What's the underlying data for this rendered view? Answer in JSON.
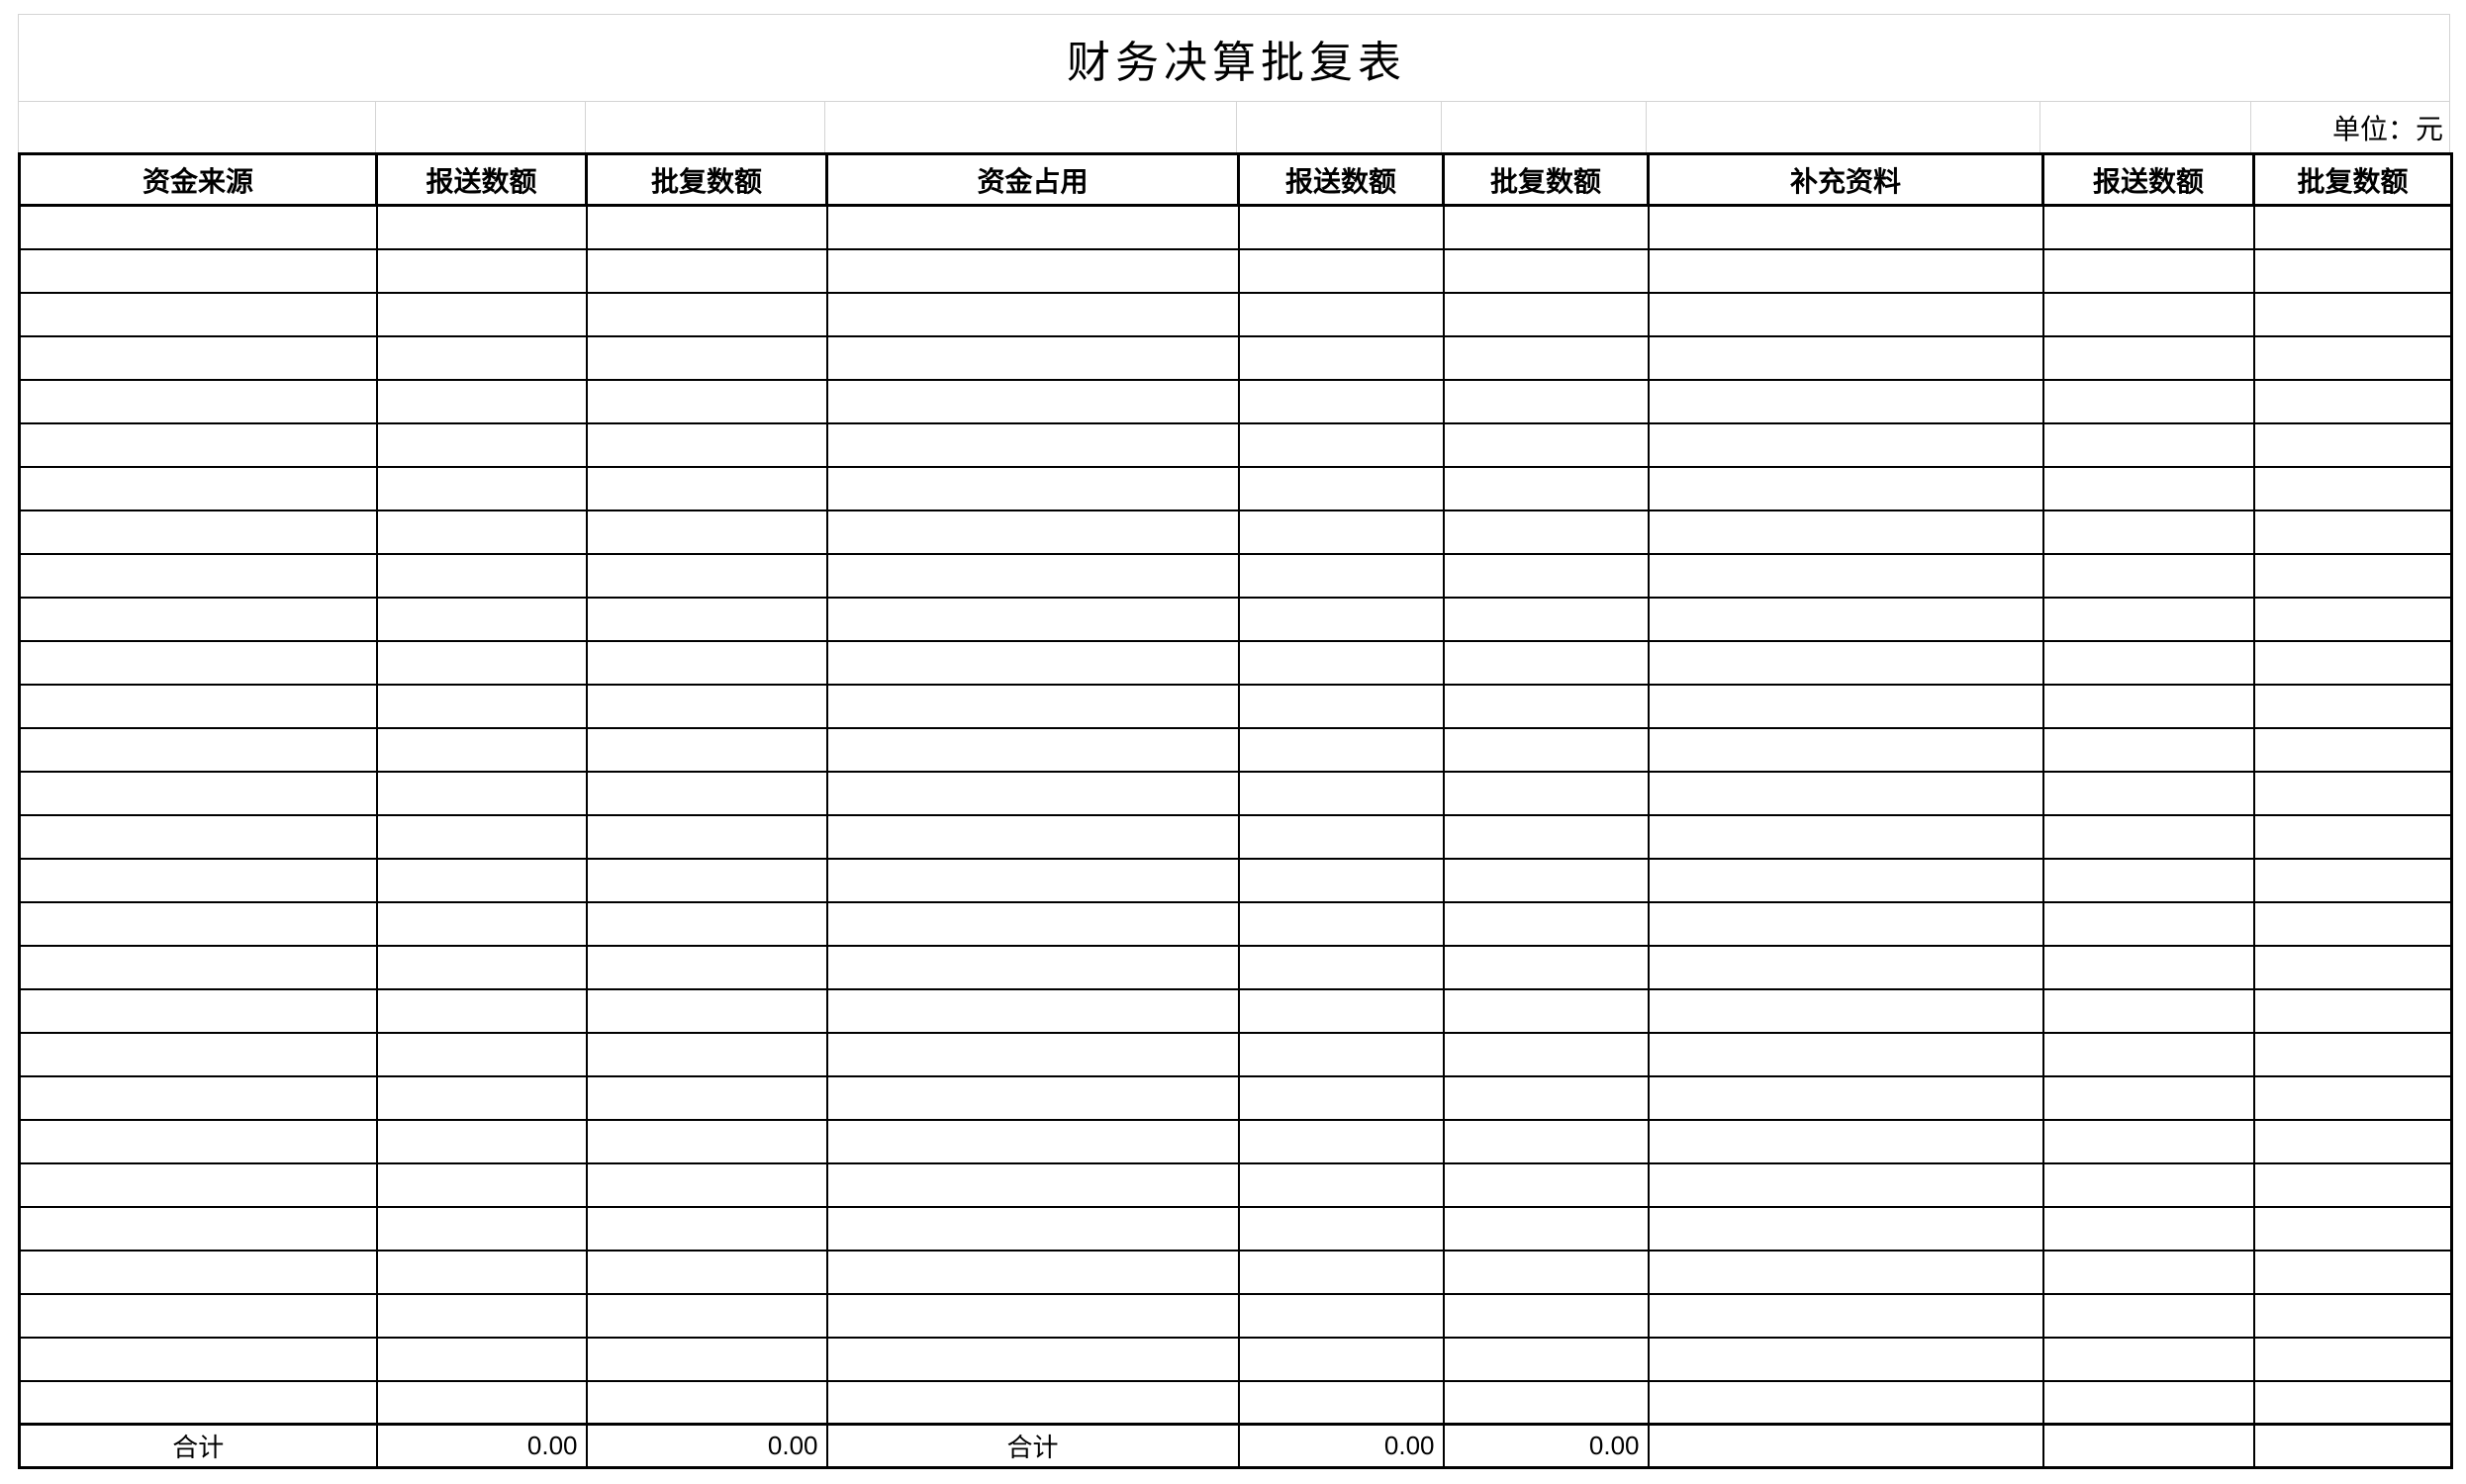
{
  "page": {
    "title": "财务决算批复表",
    "unit_label": "单位：元"
  },
  "table": {
    "columns": [
      {
        "label": "资金来源"
      },
      {
        "label": "报送数额"
      },
      {
        "label": "批复数额"
      },
      {
        "label": "资金占用"
      },
      {
        "label": "报送数额"
      },
      {
        "label": "批复数额"
      },
      {
        "label": "补充资料"
      },
      {
        "label": "报送数额"
      },
      {
        "label": "批复数额"
      }
    ],
    "empty_row_count": 28,
    "total_row": {
      "source_label": "合计",
      "source_submitted": "0.00",
      "source_approved": "0.00",
      "usage_label": "合计",
      "usage_submitted": "0.00",
      "usage_approved": "0.00",
      "supplementary": "",
      "supplementary_submitted": "",
      "supplementary_approved": ""
    }
  },
  "colors": {
    "background": "#ffffff",
    "grid_line": "#d4d4d4",
    "table_border": "#000000"
  }
}
